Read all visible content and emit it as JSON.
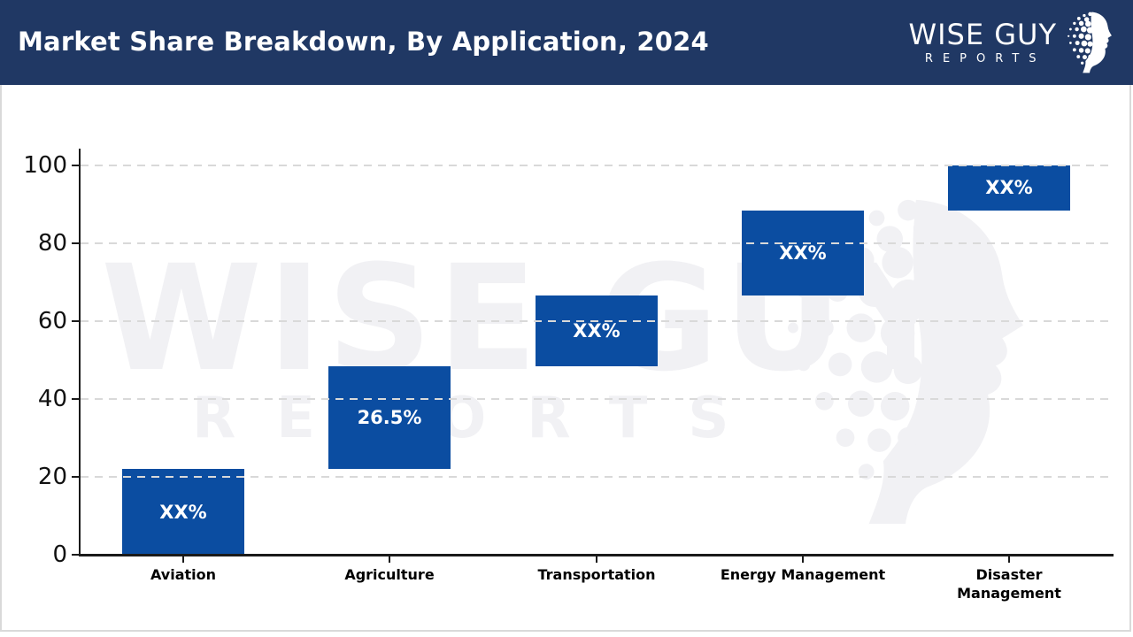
{
  "header": {
    "title": "Market Share Breakdown, By Application, 2024",
    "logo": {
      "wordmark": "WISE GUY",
      "subtext": "REPORTS"
    }
  },
  "watermark": {
    "wordmark": "WISE GUY",
    "subtext": "REPORTS"
  },
  "colors": {
    "header_bg": "#203864",
    "bar": "#0b4da1",
    "bar_label": "#ffffff",
    "grid": "#d9d9d9",
    "axis": "#1a1a1a",
    "watermark": "#f1f1f4",
    "page_border": "#d9d9d9"
  },
  "chart_data": {
    "type": "bar",
    "subtype": "floating-waterfall",
    "title": "Market Share Breakdown, By Application, 2024",
    "xlabel": "",
    "ylabel": "",
    "ylim": [
      0,
      100
    ],
    "yticks": [
      0,
      20,
      40,
      60,
      80,
      100
    ],
    "grid": "horizontal-dashed",
    "legend": "none",
    "categories": [
      "Aviation",
      "Agriculture",
      "Transportation",
      "Energy Management",
      "Disaster Management"
    ],
    "category_label_lines": [
      [
        "Aviation"
      ],
      [
        "Agriculture"
      ],
      [
        "Transportation"
      ],
      [
        "Energy Management"
      ],
      [
        "Disaster",
        "Management"
      ]
    ],
    "segments": [
      {
        "category": "Aviation",
        "start": 0,
        "end": 22,
        "value_label": "XX%"
      },
      {
        "category": "Agriculture",
        "start": 22,
        "end": 48.5,
        "value_label": "26.5%"
      },
      {
        "category": "Transportation",
        "start": 48.5,
        "end": 66.5,
        "value_label": "XX%"
      },
      {
        "category": "Energy Management",
        "start": 66.5,
        "end": 88.5,
        "value_label": "XX%"
      },
      {
        "category": "Disaster Management",
        "start": 88.5,
        "end": 100,
        "value_label": "XX%"
      }
    ]
  }
}
